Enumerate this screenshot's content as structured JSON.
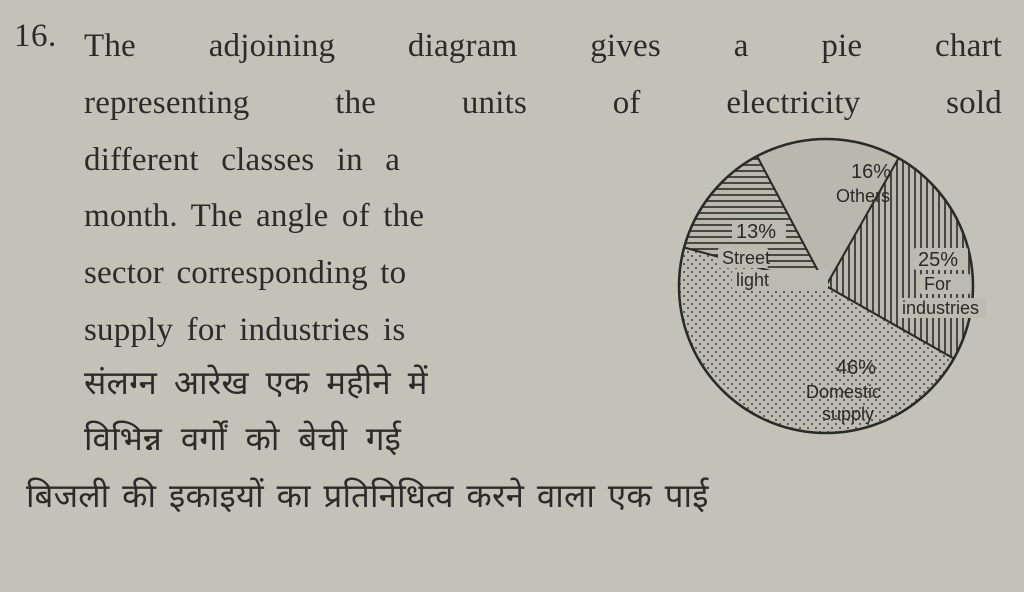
{
  "page": {
    "background_color": "#c3c1b8",
    "text_color": "#2d2b28"
  },
  "question": {
    "number": "16.",
    "lines_en": [
      "The adjoining diagram gives a pie chart",
      "representing the units of electricity sold to",
      "different classes in a",
      "month. The angle of the",
      "sector corresponding to",
      "supply for industries is"
    ],
    "lines_hi": [
      "संलग्न आरेख एक महीने में",
      "विभिन्न वर्गों को बेची गई",
      "बिजली की इकाइयों का प्रतिनिधित्व करने वाला एक पाई"
    ]
  },
  "chart": {
    "type": "pie",
    "background_color": "#c3c1b8",
    "stroke_color": "#2a2a26",
    "stroke_width": 2,
    "radius": 147,
    "label_fontsize_pct": 20,
    "label_fontsize_name": 18,
    "slices": [
      {
        "key": "others",
        "pct_label": "16%",
        "name_label": "Others",
        "value": 16,
        "fill": "#b9b8ae",
        "pattern": "none"
      },
      {
        "key": "industries",
        "pct_label": "25%",
        "name_label_1": "For",
        "name_label_2": "industries",
        "value": 25,
        "fill": "#b9b8ae",
        "pattern": "vlines"
      },
      {
        "key": "domestic",
        "pct_label": "46%",
        "name_label_1": "Domestic",
        "name_label_2": "supply",
        "value": 46,
        "fill": "#b9b8ae",
        "pattern": "dots"
      },
      {
        "key": "street",
        "pct_label": "13%",
        "name_label_1": "Street",
        "name_label_2": "light",
        "value": 13,
        "fill": "#b9b8ae",
        "pattern": "hlines"
      }
    ]
  }
}
